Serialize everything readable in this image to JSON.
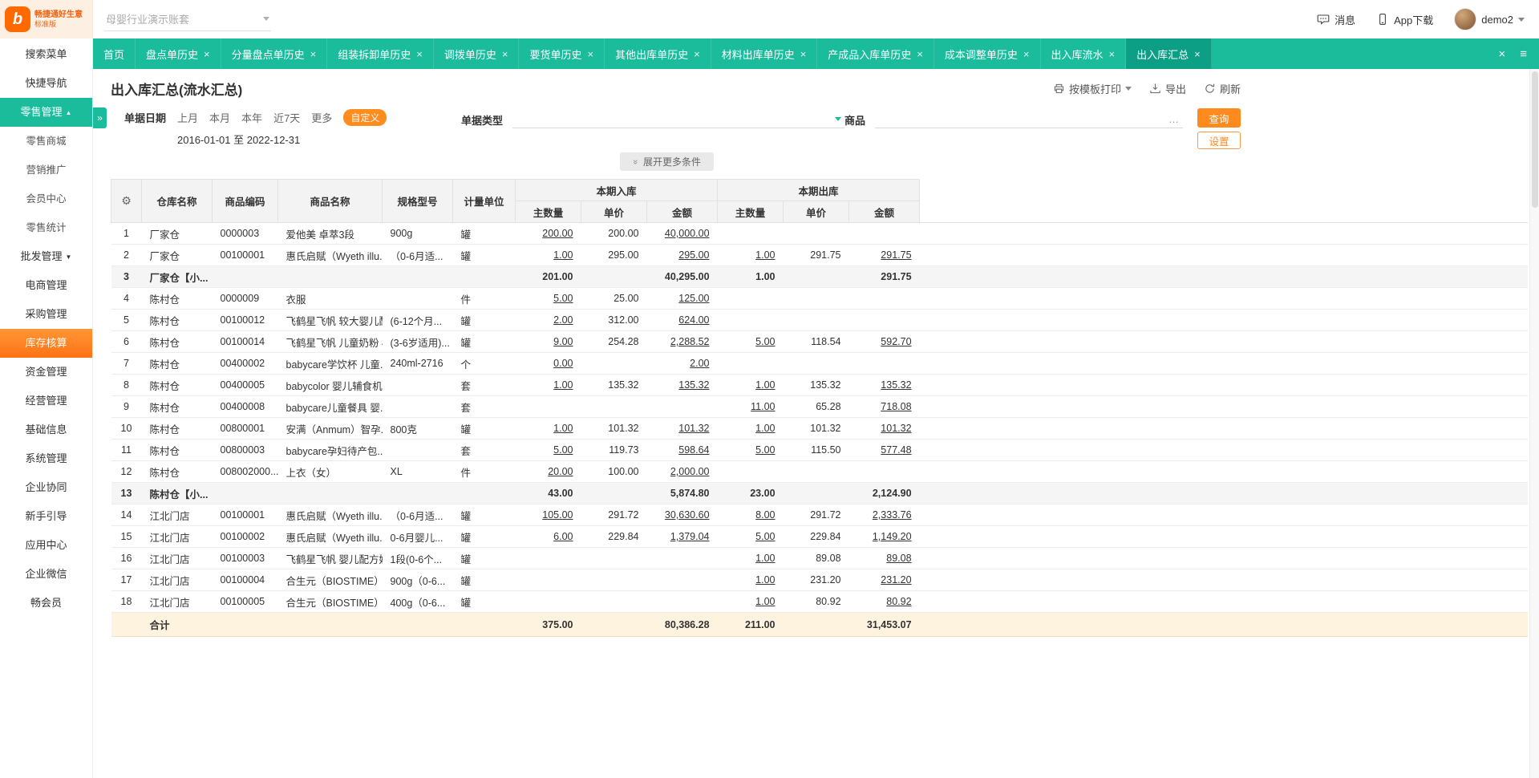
{
  "brand": {
    "name": "畅捷通好生意",
    "edition": "标准版",
    "logo_letter": "b"
  },
  "topbar": {
    "account": "母婴行业演示账套",
    "messages": "消息",
    "app_download": "App下载",
    "user": "demo2"
  },
  "sidebar": {
    "items": [
      {
        "label": "搜索菜单",
        "style": "item"
      },
      {
        "label": "快捷导航",
        "style": "item"
      },
      {
        "label": "零售管理",
        "style": "teal",
        "arrow": "▲"
      },
      {
        "label": "零售商城",
        "style": "sub"
      },
      {
        "label": "营销推广",
        "style": "sub"
      },
      {
        "label": "会员中心",
        "style": "sub"
      },
      {
        "label": "零售统计",
        "style": "sub"
      },
      {
        "label": "批发管理",
        "style": "item",
        "arrow": "▼"
      },
      {
        "label": "电商管理",
        "style": "item"
      },
      {
        "label": "采购管理",
        "style": "item"
      },
      {
        "label": "库存核算",
        "style": "orange"
      },
      {
        "label": "资金管理",
        "style": "item"
      },
      {
        "label": "经营管理",
        "style": "item"
      },
      {
        "label": "基础信息",
        "style": "item"
      },
      {
        "label": "系统管理",
        "style": "item"
      },
      {
        "label": "企业协同",
        "style": "item"
      },
      {
        "label": "新手引导",
        "style": "item"
      },
      {
        "label": "应用中心",
        "style": "item"
      },
      {
        "label": "企业微信",
        "style": "item"
      },
      {
        "label": "畅会员",
        "style": "item"
      }
    ]
  },
  "tabs": [
    {
      "label": "首页",
      "closable": false,
      "active": false
    },
    {
      "label": "盘点单历史",
      "closable": true,
      "active": false
    },
    {
      "label": "分量盘点单历史",
      "closable": true,
      "active": false
    },
    {
      "label": "组装拆卸单历史",
      "closable": true,
      "active": false
    },
    {
      "label": "调拨单历史",
      "closable": true,
      "active": false
    },
    {
      "label": "要货单历史",
      "closable": true,
      "active": false
    },
    {
      "label": "其他出库单历史",
      "closable": true,
      "active": false
    },
    {
      "label": "材料出库单历史",
      "closable": true,
      "active": false
    },
    {
      "label": "产成品入库单历史",
      "closable": true,
      "active": false
    },
    {
      "label": "成本调整单历史",
      "closable": true,
      "active": false
    },
    {
      "label": "出入库流水",
      "closable": true,
      "active": false
    },
    {
      "label": "出入库汇总",
      "closable": true,
      "active": true
    }
  ],
  "page": {
    "title": "出入库汇总(流水汇总)",
    "print_label": "按模板打印",
    "export_label": "导出",
    "refresh_label": "刷新"
  },
  "filters": {
    "date_label": "单据日期",
    "date_quick": [
      "上月",
      "本月",
      "本年",
      "近7天",
      "更多"
    ],
    "custom_badge": "自定义",
    "date_range": "2016-01-01 至 2022-12-31",
    "doc_type_label": "单据类型",
    "product_label": "商品",
    "search_button": "查询",
    "settings_button": "设置",
    "expand_more": "展开更多条件"
  },
  "table": {
    "columns": [
      "仓库名称",
      "商品编码",
      "商品名称",
      "规格型号",
      "计量单位"
    ],
    "group_in": "本期入库",
    "group_out": "本期出库",
    "sub_columns": [
      "主数量",
      "单价",
      "金额"
    ],
    "rows": [
      {
        "n": "1",
        "warehouse": "厂家仓",
        "code": "0000003",
        "name": "爱他美 卓萃3段",
        "spec": "900g",
        "unit": "罐",
        "in_qty": "200.00",
        "in_price": "200.00",
        "in_amt": "40,000.00",
        "out_qty": "",
        "out_price": "",
        "out_amt": "",
        "type": "data"
      },
      {
        "n": "2",
        "warehouse": "厂家仓",
        "code": "00100001",
        "name": "惠氏启赋（Wyeth illu...",
        "spec": "（0-6月适...",
        "unit": "罐",
        "in_qty": "1.00",
        "in_price": "295.00",
        "in_amt": "295.00",
        "out_qty": "1.00",
        "out_price": "291.75",
        "out_amt": "291.75",
        "type": "data"
      },
      {
        "n": "3",
        "warehouse": "厂家仓【小...",
        "code": "",
        "name": "",
        "spec": "",
        "unit": "",
        "in_qty": "201.00",
        "in_price": "",
        "in_amt": "40,295.00",
        "out_qty": "1.00",
        "out_price": "",
        "out_amt": "291.75",
        "type": "subtotal"
      },
      {
        "n": "4",
        "warehouse": "陈村仓",
        "code": "0000009",
        "name": "衣服",
        "spec": "",
        "unit": "件",
        "in_qty": "5.00",
        "in_price": "25.00",
        "in_amt": "125.00",
        "out_qty": "",
        "out_price": "",
        "out_amt": "",
        "type": "data"
      },
      {
        "n": "5",
        "warehouse": "陈村仓",
        "code": "00100012",
        "name": "飞鹤星飞帆 较大婴儿配...",
        "spec": "(6-12个月...",
        "unit": "罐",
        "in_qty": "2.00",
        "in_price": "312.00",
        "in_amt": "624.00",
        "out_qty": "",
        "out_price": "",
        "out_amt": "",
        "type": "data"
      },
      {
        "n": "6",
        "warehouse": "陈村仓",
        "code": "00100014",
        "name": "飞鹤星飞帆 儿童奶粉 4...",
        "spec": "(3-6岁适用)...",
        "unit": "罐",
        "in_qty": "9.00",
        "in_price": "254.28",
        "in_amt": "2,288.52",
        "out_qty": "5.00",
        "out_price": "118.54",
        "out_amt": "592.70",
        "type": "data"
      },
      {
        "n": "7",
        "warehouse": "陈村仓",
        "code": "00400002",
        "name": "babycare学饮杯 儿童...",
        "spec": "240ml-2716",
        "unit": "个",
        "in_qty": "0.00",
        "in_price": "",
        "in_amt": "2.00",
        "out_qty": "",
        "out_price": "",
        "out_amt": "",
        "type": "data"
      },
      {
        "n": "8",
        "warehouse": "陈村仓",
        "code": "00400005",
        "name": "babycolor 婴儿辅食机...",
        "spec": "",
        "unit": "套",
        "in_qty": "1.00",
        "in_price": "135.32",
        "in_amt": "135.32",
        "out_qty": "1.00",
        "out_price": "135.32",
        "out_amt": "135.32",
        "type": "data"
      },
      {
        "n": "9",
        "warehouse": "陈村仓",
        "code": "00400008",
        "name": "babycare儿童餐具 婴...",
        "spec": "",
        "unit": "套",
        "in_qty": "",
        "in_price": "",
        "in_amt": "",
        "out_qty": "11.00",
        "out_price": "65.28",
        "out_amt": "718.08",
        "type": "data"
      },
      {
        "n": "10",
        "warehouse": "陈村仓",
        "code": "00800001",
        "name": "安满（Anmum）智孕...",
        "spec": "800克",
        "unit": "罐",
        "in_qty": "1.00",
        "in_price": "101.32",
        "in_amt": "101.32",
        "out_qty": "1.00",
        "out_price": "101.32",
        "out_amt": "101.32",
        "type": "data"
      },
      {
        "n": "11",
        "warehouse": "陈村仓",
        "code": "00800003",
        "name": "babycare孕妇待产包...",
        "spec": "",
        "unit": "套",
        "in_qty": "5.00",
        "in_price": "119.73",
        "in_amt": "598.64",
        "out_qty": "5.00",
        "out_price": "115.50",
        "out_amt": "577.48",
        "type": "data"
      },
      {
        "n": "12",
        "warehouse": "陈村仓",
        "code": "008002000...",
        "name": "上衣（女）",
        "spec": "XL",
        "unit": "件",
        "in_qty": "20.00",
        "in_price": "100.00",
        "in_amt": "2,000.00",
        "out_qty": "",
        "out_price": "",
        "out_amt": "",
        "type": "data"
      },
      {
        "n": "13",
        "warehouse": "陈村仓【小...",
        "code": "",
        "name": "",
        "spec": "",
        "unit": "",
        "in_qty": "43.00",
        "in_price": "",
        "in_amt": "5,874.80",
        "out_qty": "23.00",
        "out_price": "",
        "out_amt": "2,124.90",
        "type": "subtotal"
      },
      {
        "n": "14",
        "warehouse": "江北门店",
        "code": "00100001",
        "name": "惠氏启赋（Wyeth illu...",
        "spec": "（0-6月适...",
        "unit": "罐",
        "in_qty": "105.00",
        "in_price": "291.72",
        "in_amt": "30,630.60",
        "out_qty": "8.00",
        "out_price": "291.72",
        "out_amt": "2,333.76",
        "type": "data"
      },
      {
        "n": "15",
        "warehouse": "江北门店",
        "code": "00100002",
        "name": "惠氏启赋（Wyeth illu...",
        "spec": "0-6月婴儿...",
        "unit": "罐",
        "in_qty": "6.00",
        "in_price": "229.84",
        "in_amt": "1,379.04",
        "out_qty": "5.00",
        "out_price": "229.84",
        "out_amt": "1,149.20",
        "type": "data"
      },
      {
        "n": "16",
        "warehouse": "江北门店",
        "code": "00100003",
        "name": "飞鹤星飞帆 婴儿配方奶...",
        "spec": "1段(0-6个...",
        "unit": "罐",
        "in_qty": "",
        "in_price": "",
        "in_amt": "",
        "out_qty": "1.00",
        "out_price": "89.08",
        "out_amt": "89.08",
        "type": "data"
      },
      {
        "n": "17",
        "warehouse": "江北门店",
        "code": "00100004",
        "name": "合生元（BIOSTIME）...",
        "spec": "900g（0-6...",
        "unit": "罐",
        "in_qty": "",
        "in_price": "",
        "in_amt": "",
        "out_qty": "1.00",
        "out_price": "231.20",
        "out_amt": "231.20",
        "type": "data"
      },
      {
        "n": "18",
        "warehouse": "江北门店",
        "code": "00100005",
        "name": "合生元（BIOSTIME）...",
        "spec": "400g（0-6...",
        "unit": "罐",
        "in_qty": "",
        "in_price": "",
        "in_amt": "",
        "out_qty": "1.00",
        "out_price": "80.92",
        "out_amt": "80.92",
        "type": "data"
      }
    ],
    "footer": {
      "label": "合计",
      "in_qty": "375.00",
      "in_amount": "80,386.28",
      "out_qty": "211.00",
      "out_amount": "31,453.07"
    }
  }
}
